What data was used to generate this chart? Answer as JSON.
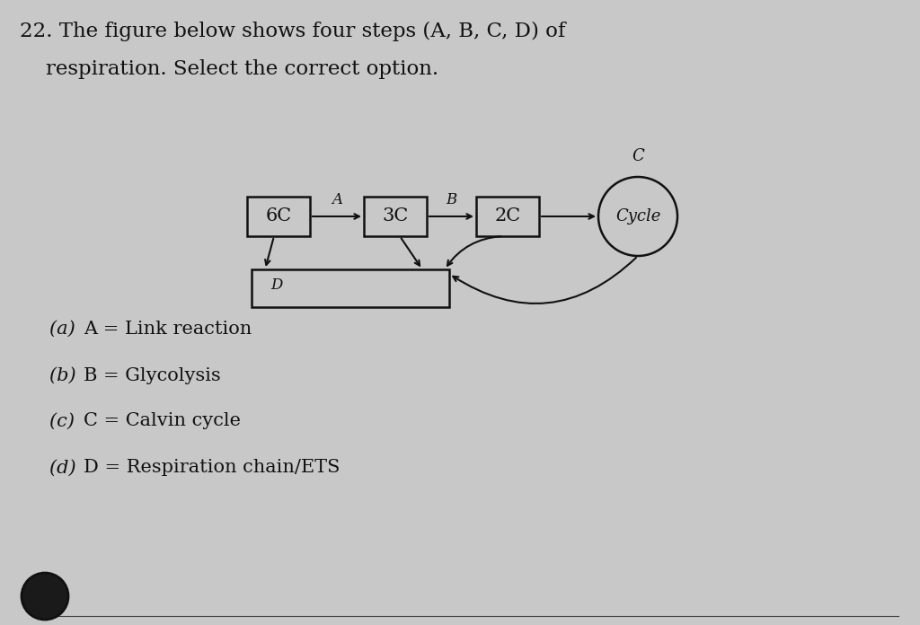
{
  "bg_color": "#c8c8c8",
  "title_line1": "22. The figure below shows four steps (A, B, C, D) of",
  "title_line2": "    respiration. Select the correct option.",
  "box_6C": "6C",
  "box_3C": "3C",
  "box_2C": "2C",
  "circle_label": "Cycle",
  "label_C": "C",
  "label_A": "A",
  "label_B": "B",
  "label_D": "D",
  "options": [
    [
      "(a) ",
      "A = Link reaction"
    ],
    [
      "(b) ",
      "B = Glycolysis"
    ],
    [
      "(c) ",
      "C = Calvin cycle"
    ],
    [
      "(d) ",
      "D = Respiration chain/ETS"
    ]
  ],
  "text_color": "#111111",
  "box_color": "#111111",
  "arrow_color": "#111111"
}
